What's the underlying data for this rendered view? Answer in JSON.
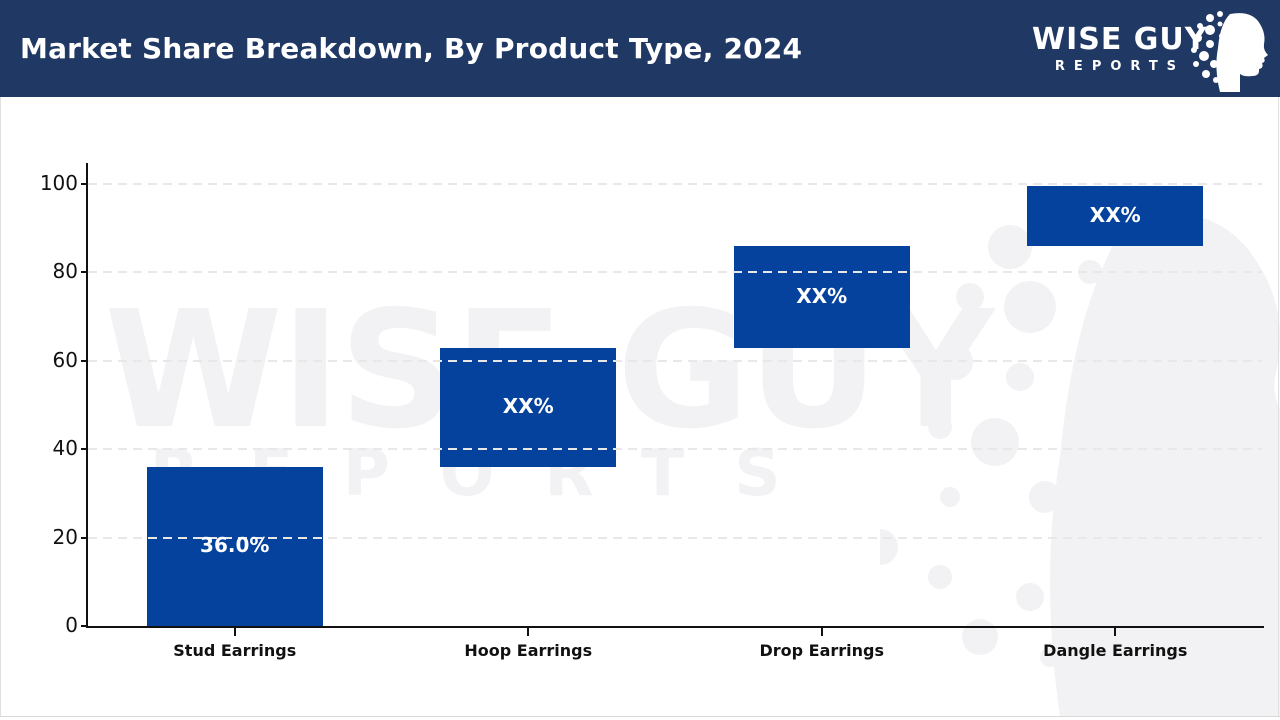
{
  "header": {
    "title": "Market Share Breakdown, By Product Type, 2024",
    "logo": {
      "line1": "WISE GUY",
      "line2": "REPORTS"
    }
  },
  "watermark": {
    "line1": "WISE GUY",
    "line2": "REPORTS"
  },
  "colors": {
    "header_navy": "#1f3864",
    "bar_blue": "#05429d",
    "grid_gray": "#e8e8e8",
    "axis_black": "#111111",
    "watermark_gray": "#f2f2f4",
    "label_white": "#ffffff"
  },
  "chart_data": {
    "type": "bar",
    "subtype": "waterfall",
    "title": "Market Share Breakdown, By Product Type, 2024",
    "categories": [
      "Stud Earrings",
      "Hoop Earrings",
      "Drop Earrings",
      "Dangle Earrings"
    ],
    "segments": [
      {
        "category": "Stud Earrings",
        "start": 0,
        "end": 36,
        "value_label": "36.0%"
      },
      {
        "category": "Hoop Earrings",
        "start": 36,
        "end": 63,
        "value_label": "XX%"
      },
      {
        "category": "Drop Earrings",
        "start": 63,
        "end": 86,
        "value_label": "XX%"
      },
      {
        "category": "Dangle Earrings",
        "start": 86,
        "end": 99.5,
        "value_label": "XX%"
      }
    ],
    "yticks": [
      0,
      20,
      40,
      60,
      80,
      100
    ],
    "ylim": [
      0,
      104.7
    ],
    "xlabel": "",
    "ylabel": "",
    "grid": true,
    "grid_style": "dashed-over-bars",
    "legend": "none"
  }
}
